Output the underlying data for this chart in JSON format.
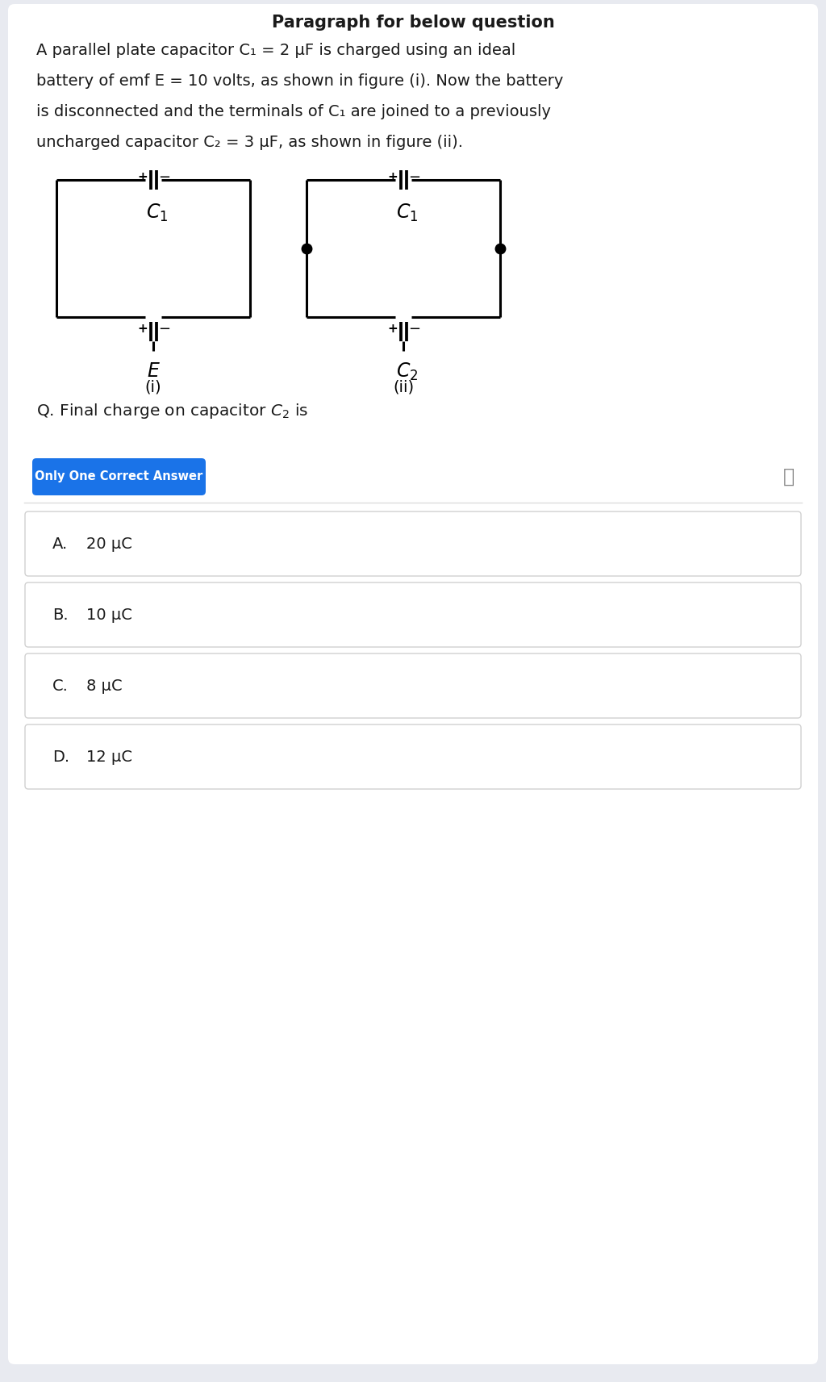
{
  "title": "Paragraph for below question",
  "para_line1": "A parallel plate capacitor C₁ = 2 μF is charged using an ideal",
  "para_line2": "battery of emf E = 10 volts, as shown in figure (i). Now the battery",
  "para_line3": "is disconnected and the terminals of C₁ are joined to a previously",
  "para_line4": "uncharged capacitor C₂ = 3 μF, as shown in figure (ii).",
  "question": "Q. Final charge on capacitor C₂ is",
  "button_text": "Only One Correct Answer",
  "button_color": "#1a73e8",
  "button_text_color": "#ffffff",
  "options": [
    {
      "label": "A.",
      "text": "20 μC"
    },
    {
      "label": "B.",
      "text": "10 μC"
    },
    {
      "label": "C.",
      "text": "8 μC"
    },
    {
      "label": "D.",
      "text": "12 μC"
    }
  ],
  "bg_color": "#e8eaf0",
  "card_color": "#ffffff",
  "text_color": "#1a1a1a",
  "fig_width": 10.24,
  "fig_height": 17.13,
  "dpi": 100
}
